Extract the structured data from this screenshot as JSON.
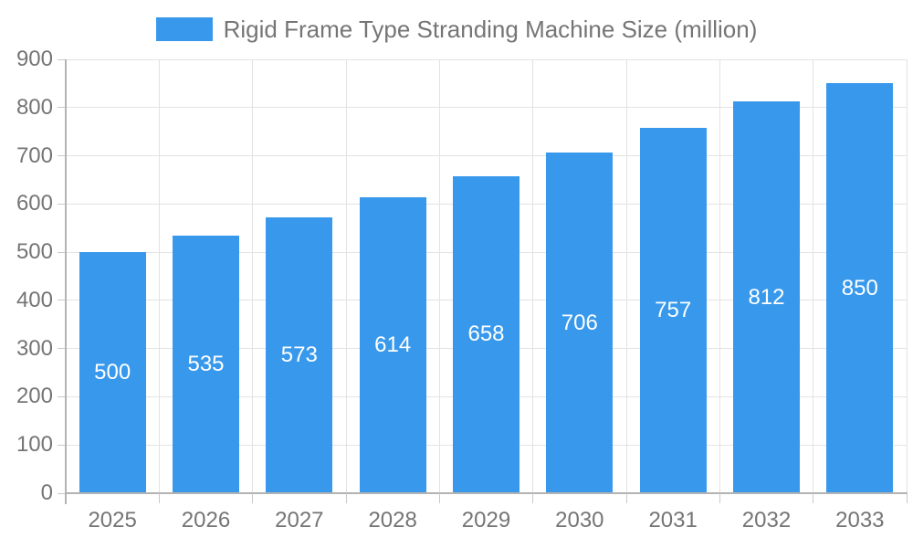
{
  "chart_data": {
    "type": "bar",
    "title": "Rigid Frame Type Stranding Machine Size (million)",
    "legend": {
      "label": "Rigid Frame Type Stranding Machine Size (million)",
      "position": "top-center"
    },
    "categories": [
      "2025",
      "2026",
      "2027",
      "2028",
      "2029",
      "2030",
      "2031",
      "2032",
      "2033"
    ],
    "values": [
      500,
      535,
      573,
      614,
      658,
      706,
      757,
      812,
      850
    ],
    "xlabel": "",
    "ylabel": "",
    "ylim": [
      0,
      900
    ],
    "ytick_step": 100,
    "ytick_labels": [
      "0",
      "100",
      "200",
      "300",
      "400",
      "500",
      "600",
      "700",
      "800",
      "900"
    ],
    "grid": true,
    "bar_value_labels_inside": true,
    "colors": {
      "bar": "#3899EC",
      "bar_label_text": "#FFFFFF",
      "axis_text": "#757575",
      "legend_text": "#757575",
      "gridline": "#E3E3E3",
      "axis_line": "#B3B3B3",
      "tick": "#C9C9C9",
      "background": "#FFFFFF"
    }
  }
}
